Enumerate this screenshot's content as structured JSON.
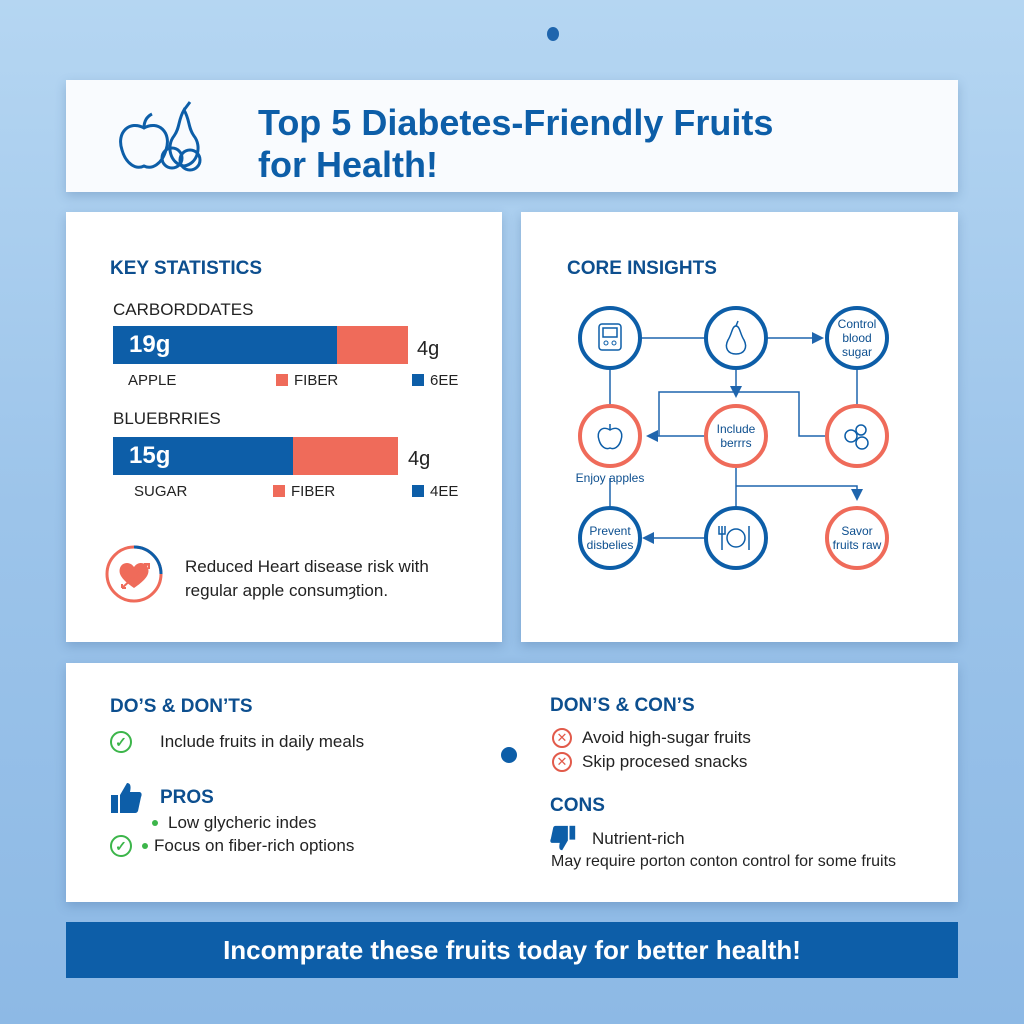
{
  "header": {
    "title_line1": "Top 5 Diabetes-Friendly Fruits",
    "title_line2": "for Health!"
  },
  "key_stats": {
    "heading": "KEY STATISTICS",
    "groups": [
      {
        "title": "CARBORDDATES",
        "main_value": "19g",
        "side_value": "4g",
        "label": "APPLE",
        "legend_fiber": "FIBER",
        "legend_other": "6EE",
        "blue_share": 0.76
      },
      {
        "title": "BLUEBRRIES",
        "main_value": "15g",
        "side_value": "4g",
        "label": "SUGAR",
        "legend_fiber": "FIBER",
        "legend_other": "4EE",
        "blue_share": 0.63
      }
    ],
    "note_line1": "Reduced Heart disease risk with",
    "note_line2": "regular apple consumȝtion."
  },
  "core_insights": {
    "heading": "CORE INSIGHTS",
    "nodes": [
      {
        "icon": "glucose-meter-icon",
        "text": []
      },
      {
        "icon": "pear-icon",
        "text": []
      },
      {
        "text": [
          "Control",
          "blood",
          "sugar"
        ]
      },
      {
        "icon": "apple-icon",
        "text": [],
        "caption": "Enjoy apples"
      },
      {
        "text": [
          "Include",
          "berrrs"
        ]
      },
      {
        "icon": "berries-icon",
        "text": []
      },
      {
        "text": [
          "Prevent",
          "disbelies"
        ]
      },
      {
        "icon": "plate-cutlery-icon",
        "text": []
      },
      {
        "text": [
          "Savor",
          "fruits raw"
        ]
      }
    ]
  },
  "dos_donts": {
    "heading": "DO’S & DON’TS",
    "do_item": "Include fruits in daily meals",
    "pros_heading": "PROS",
    "pros": [
      "Low glycheric indes",
      "Focus on fiber-rich options"
    ]
  },
  "dons_cons": {
    "heading": "DON’S & CON’S",
    "items": [
      "Avoid high-sugar fruits",
      "Skip procesed snacks"
    ],
    "cons_heading": "CONS",
    "cons_item": "Nutrient-rich",
    "cons_note": "May require porton conton control for some fruits"
  },
  "banner": "Incomprate these fruits today for better health!",
  "colors": {
    "blue": "#0d5ea8",
    "coral": "#ef6b5a",
    "green": "#3cb54a"
  }
}
